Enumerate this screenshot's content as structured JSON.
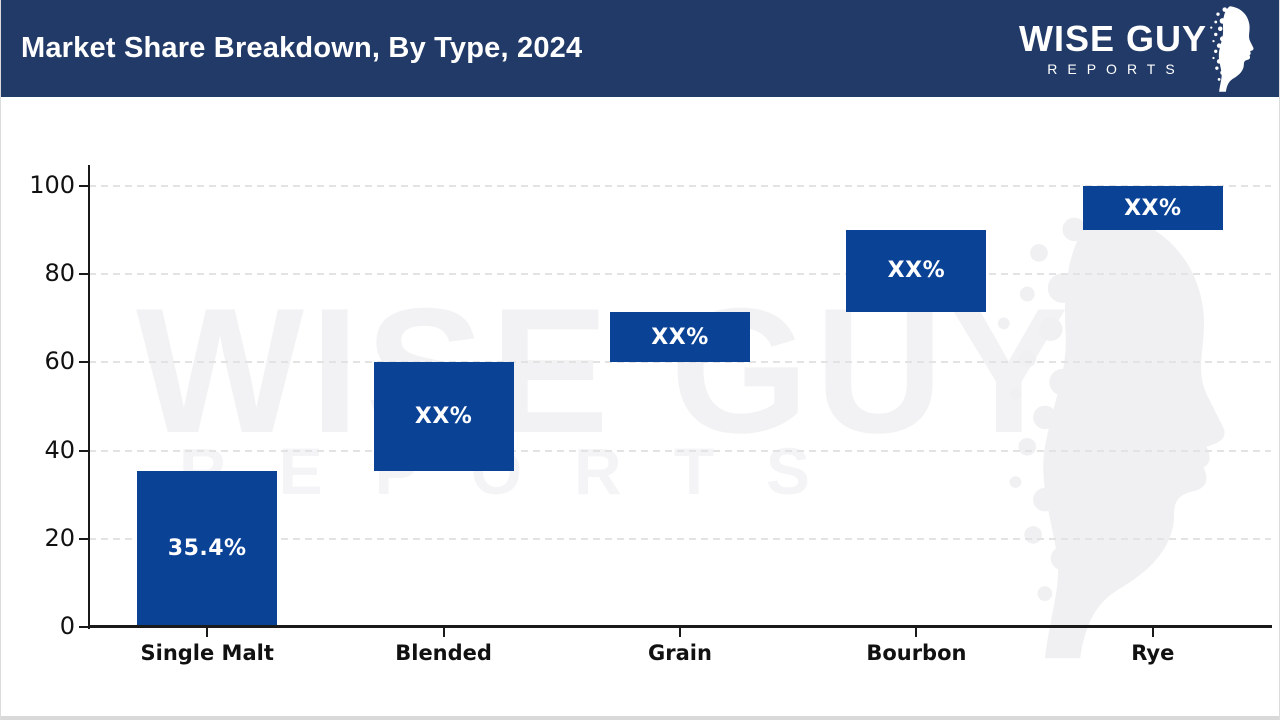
{
  "header": {
    "title": "Market Share Breakdown, By Type, 2024",
    "bg_color": "#213a67",
    "logo": {
      "line1": "WISE GUY",
      "line2": "REPORTS"
    }
  },
  "watermark": {
    "line1": "WISE GUY",
    "line2": "REPORTS"
  },
  "chart_data": {
    "type": "bar",
    "subtype": "waterfall",
    "title": "Market Share Breakdown, By Type, 2024",
    "xlabel": "",
    "ylabel": "",
    "ylim": [
      0,
      100
    ],
    "yticks": [
      0,
      20,
      40,
      60,
      80,
      100
    ],
    "grid": "horizontal-dashed",
    "legend": "none",
    "bar_color": "#0a4296",
    "bar_label_color": "#ffffff",
    "categories": [
      "Single Malt",
      "Blended",
      "Grain",
      "Bourbon",
      "Rye"
    ],
    "series": [
      {
        "name": "Market Share",
        "segments": [
          {
            "category": "Single Malt",
            "start": 0,
            "end": 35.4,
            "label": "35.4%"
          },
          {
            "category": "Blended",
            "start": 35.4,
            "end": 60,
            "label": "XX%"
          },
          {
            "category": "Grain",
            "start": 60,
            "end": 71.5,
            "label": "XX%"
          },
          {
            "category": "Bourbon",
            "start": 71.5,
            "end": 90,
            "label": "XX%"
          },
          {
            "category": "Rye",
            "start": 90,
            "end": 100,
            "label": "XX%"
          }
        ]
      }
    ]
  }
}
